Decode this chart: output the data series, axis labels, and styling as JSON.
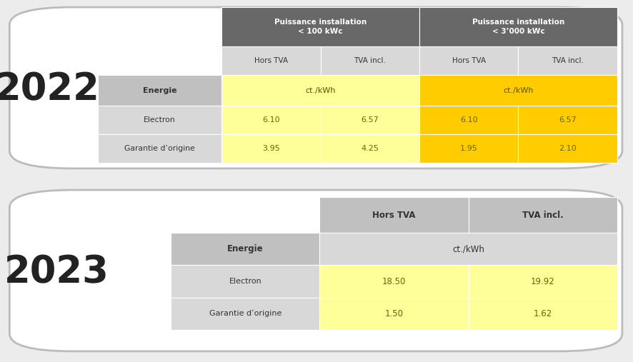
{
  "table2022": {
    "header1": [
      "Puissance installation\n< 100 kWc",
      "Puissance installation\n< 3’000 kWc"
    ],
    "col_headers": [
      "Hors TVA",
      "TVA incl.",
      "Hors TVA",
      "TVA incl."
    ],
    "energie_label": "Energie",
    "energie_unit": "ct./kWh",
    "rows": [
      {
        "label": "Electron",
        "values": [
          "6.10",
          "6.57",
          "6.10",
          "6.57"
        ]
      },
      {
        "label": "Garantie d’origine",
        "values": [
          "3.95",
          "4.25",
          "1.95",
          "2.10"
        ]
      }
    ],
    "year": "2022"
  },
  "table2023": {
    "col_headers": [
      "Hors TVA",
      "TVA incl."
    ],
    "energie_label": "Energie",
    "energie_unit": "ct./kWh",
    "rows": [
      {
        "label": "Electron",
        "values": [
          "18.50",
          "19.92"
        ]
      },
      {
        "label": "Garantie d’origine",
        "values": [
          "1.50",
          "1.62"
        ]
      }
    ],
    "year": "2023"
  },
  "colors": {
    "dark_gray_header": "#686868",
    "light_gray_row": "#c0c0c0",
    "light_gray_cell": "#d8d8d8",
    "light_yellow": "#ffff99",
    "gold_yellow": "#ffcc00",
    "white": "#ffffff",
    "text_dark": "#333333",
    "text_yellow_dark": "#666600",
    "bg": "#ececec"
  }
}
